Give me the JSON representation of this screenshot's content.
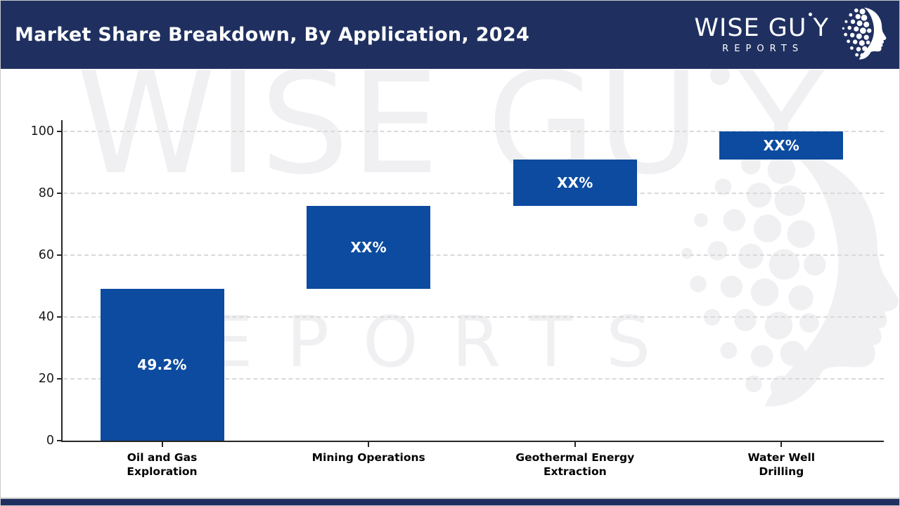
{
  "header": {
    "title": "Market Share Breakdown, By Application, 2024",
    "logo": {
      "brand_left": "WISE GU",
      "brand_right": "Y",
      "reports": "REPORTS",
      "head_icon": "dotted-head-profile"
    }
  },
  "watermark": {
    "line1_left": "WISE GU",
    "line1_right": "Y",
    "line2": "REPORTS"
  },
  "colors": {
    "header_bg": "#1f3060",
    "footer_bg": "#1f3060",
    "title_text": "#ffffff",
    "bar": "#0c4b9f",
    "bar_label": "#ffffff",
    "axis": "#262626",
    "tick_text": "#1a1a1a",
    "grid": "#d9d9d9",
    "watermark": "#f0f0f2",
    "page_border": "#c9c9c9"
  },
  "chart_data": {
    "type": "bar",
    "variant": "waterfall",
    "title": "Market Share Breakdown, By Application, 2024",
    "categories": [
      [
        "Oil and Gas",
        "Exploration"
      ],
      [
        "Mining Operations"
      ],
      [
        "Geothermal Energy",
        "Extraction"
      ],
      [
        "Water Well",
        "Drilling"
      ]
    ],
    "segments": [
      {
        "start": 0,
        "end": 49.2,
        "label": "49.2%"
      },
      {
        "start": 49.2,
        "end": 75.8,
        "label": "XX%"
      },
      {
        "start": 75.8,
        "end": 91.0,
        "label": "XX%"
      },
      {
        "start": 91.0,
        "end": 100.0,
        "label": "XX%"
      }
    ],
    "yticks": [
      0,
      20,
      40,
      60,
      80,
      100
    ],
    "ylim": [
      0,
      103.5
    ],
    "xlabel": "",
    "ylabel": "",
    "grid": {
      "horizontal": true,
      "style": "dashed"
    },
    "legend": "none"
  }
}
